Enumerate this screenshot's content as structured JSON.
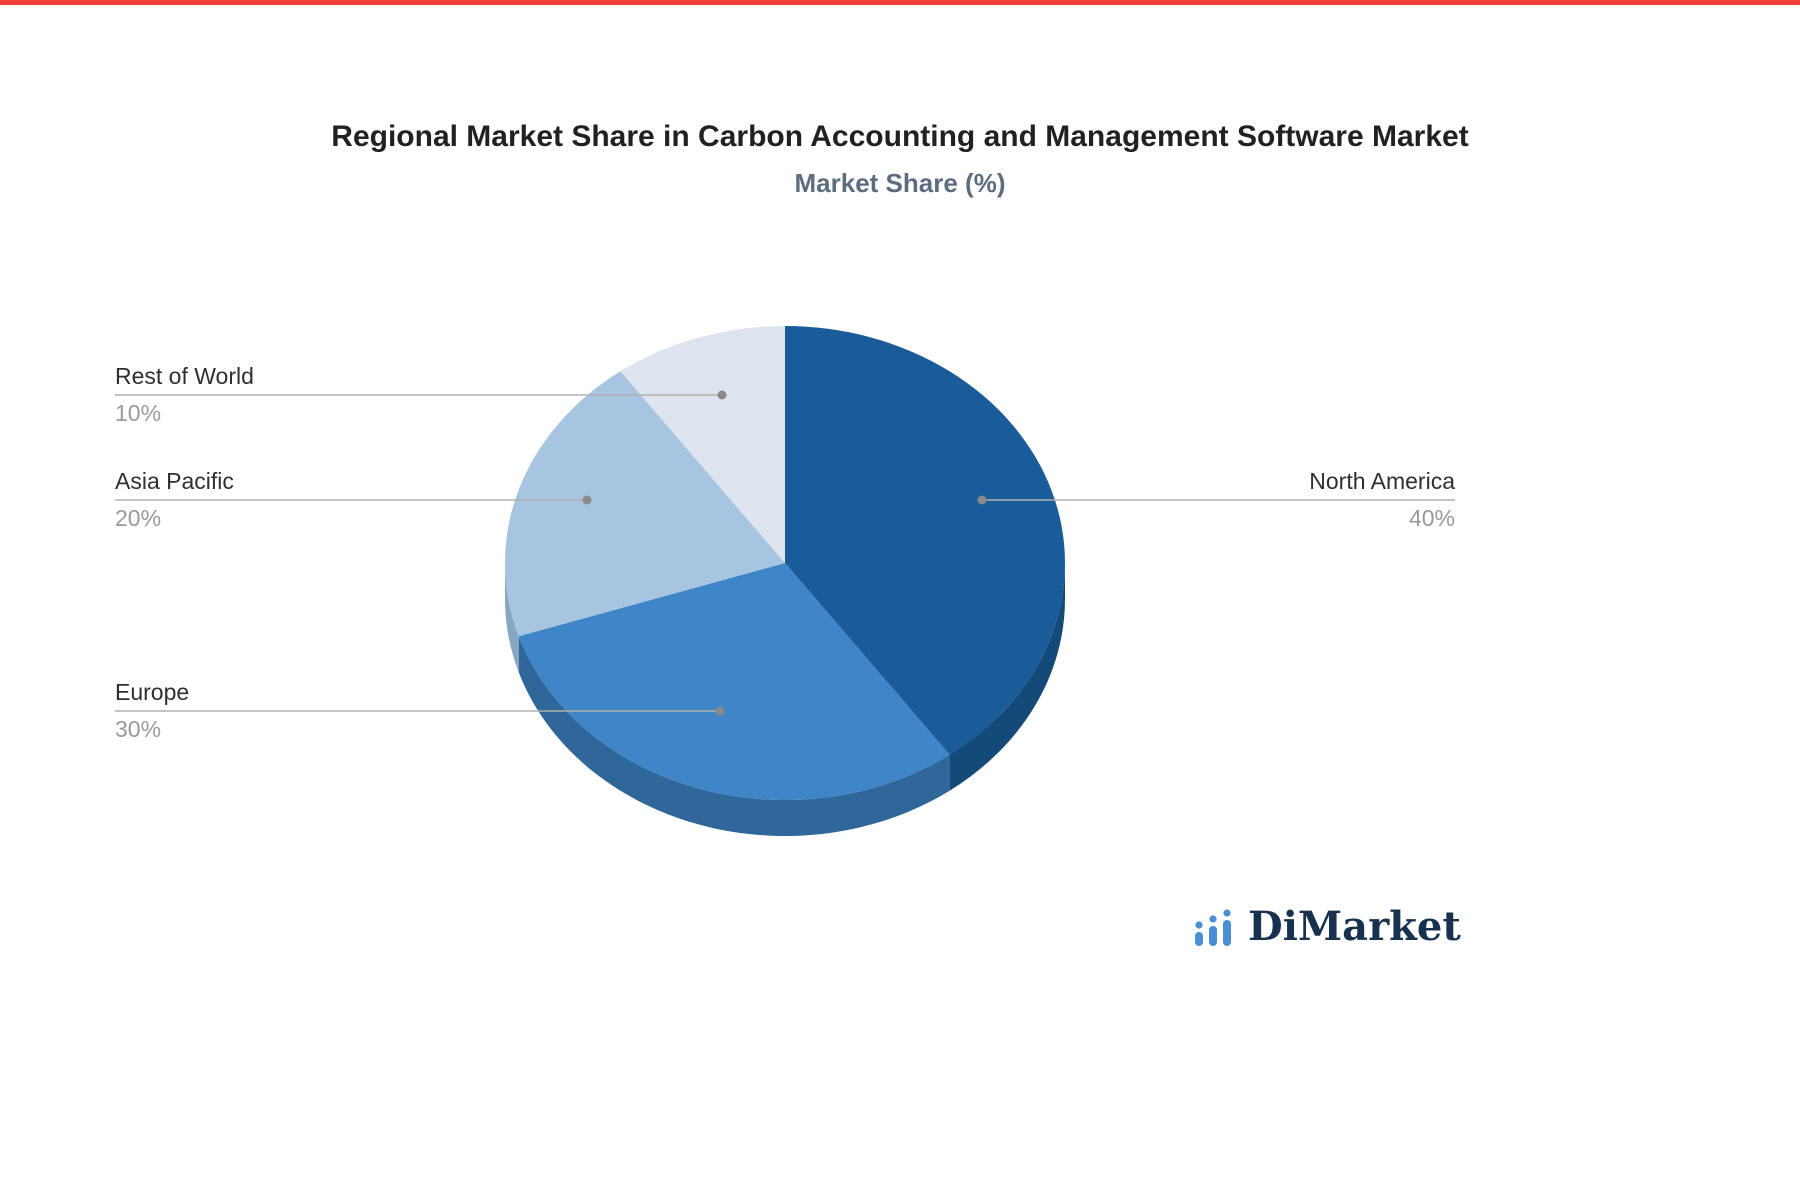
{
  "chart_data": {
    "type": "pie",
    "title": "Regional Market Share in Carbon Accounting and Management Software Market",
    "subtitle": "Market Share (%)",
    "unit": "%",
    "style": "3d-pie",
    "start_angle_deg": -90,
    "direction": "clockwise",
    "legend": "none",
    "slices": [
      {
        "label": "North America",
        "value": 40,
        "value_label": "40%",
        "color": "#1a5c99",
        "side_color": "#134a78",
        "label_side": "right"
      },
      {
        "label": "Europe",
        "value": 30,
        "value_label": "30%",
        "color": "#3e86c8",
        "side_color": "#2f679a",
        "label_side": "left"
      },
      {
        "label": "Asia Pacific",
        "value": 20,
        "value_label": "20%",
        "color": "#a7c4e0",
        "side_color": "#87a6c2",
        "label_side": "left"
      },
      {
        "label": "Rest of World",
        "value": 10,
        "value_label": "10%",
        "color": "#dde4ee",
        "side_color": "#bcc8d8",
        "label_side": "left"
      }
    ],
    "leader_line_color": "#b0b0b0",
    "leader_dot_color": "#8a8a8a"
  },
  "logo": {
    "text": "DiMarket",
    "icon": "bar-chart-icon",
    "icon_color": "#4a8fd3",
    "text_color": "#16324f"
  },
  "accent_bar_color": "#ee4037"
}
